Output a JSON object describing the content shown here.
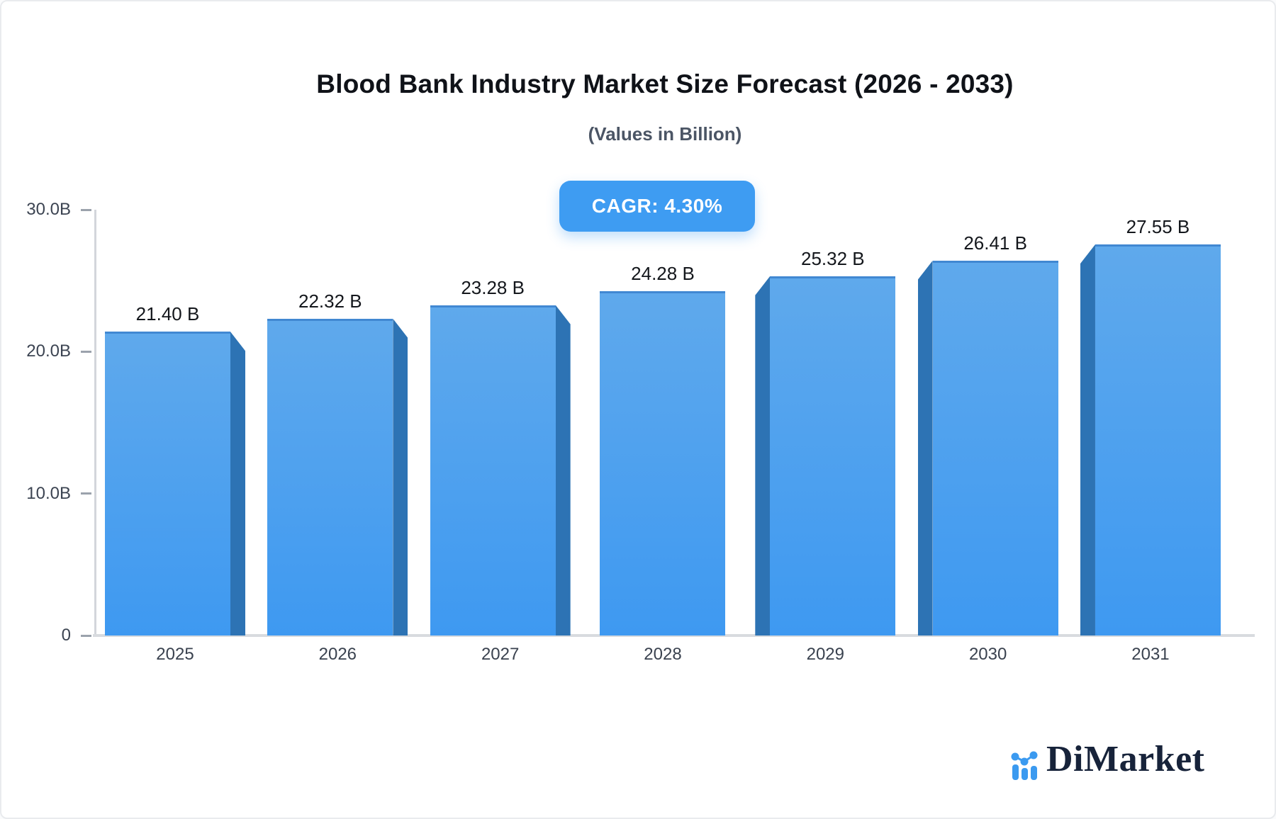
{
  "chart": {
    "title": "Blood Bank Industry Market Size Forecast (2026 - 2033)",
    "subtitle": "(Values in Billion)",
    "badge_label": "CAGR: 4.30%"
  },
  "chart_data": {
    "type": "bar",
    "title": "Blood Bank Industry Market Size Forecast (2026 - 2033)",
    "subtitle": "(Values in Billion)",
    "categories": [
      "2025",
      "2026",
      "2027",
      "2028",
      "2029",
      "2030",
      "2031"
    ],
    "values": [
      21.4,
      22.32,
      23.28,
      24.28,
      25.32,
      26.41,
      27.55
    ],
    "value_labels": [
      "21.40 B",
      "22.32 B",
      "23.28 B",
      "24.28 B",
      "25.32 B",
      "26.41 B",
      "27.55 B"
    ],
    "ylim": [
      0,
      30
    ],
    "yticks": [
      {
        "label": "30.0B",
        "value": 30
      },
      {
        "label": "20.0B",
        "value": 20
      },
      {
        "label": "10.0B",
        "value": 10
      },
      {
        "label": "0",
        "value": 0
      }
    ],
    "grid": false,
    "legend": false,
    "annotations": [
      "CAGR: 4.30%"
    ],
    "colors": {
      "bar_face_top": "#5fa9ec",
      "bar_face_bottom": "#3e99f1",
      "bar_side": "#2d73b4",
      "bar_top_edge": "#4188d2",
      "badge_bg": "#3e9cf2",
      "axis_line": "#d3d6db",
      "tick": "#9ba2ac"
    }
  },
  "footer": {
    "brand": "DiMarket",
    "logo_icon": "bar-chart-trend-icon",
    "brand_blue": "#3b9af0",
    "brand_navy": "#17233a"
  }
}
